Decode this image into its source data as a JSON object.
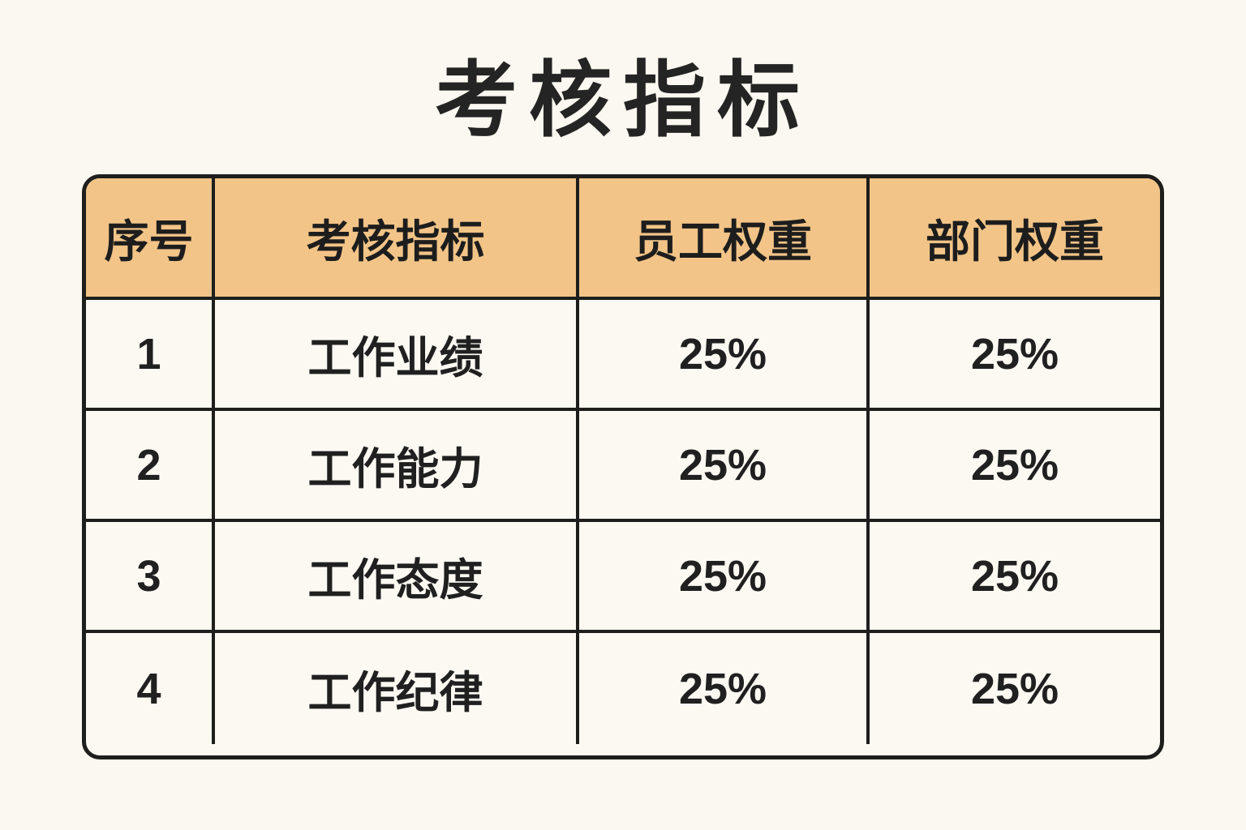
{
  "title": "考核指标",
  "colors": {
    "page_bg": "#FAF8F0",
    "cell_bg": "#FBF9F2",
    "header_bg": "#F2C487",
    "border": "#1E1E1C",
    "text": "#222222"
  },
  "chart_data": {
    "type": "table",
    "title": "考核指标",
    "columns": [
      "序号",
      "考核指标",
      "员工权重",
      "部门权重"
    ],
    "rows": [
      [
        "1",
        "工作业绩",
        "25%",
        "25%"
      ],
      [
        "2",
        "工作能力",
        "25%",
        "25%"
      ],
      [
        "3",
        "工作态度",
        "25%",
        "25%"
      ],
      [
        "4",
        "工作纪律",
        "25%",
        "25%"
      ]
    ]
  }
}
